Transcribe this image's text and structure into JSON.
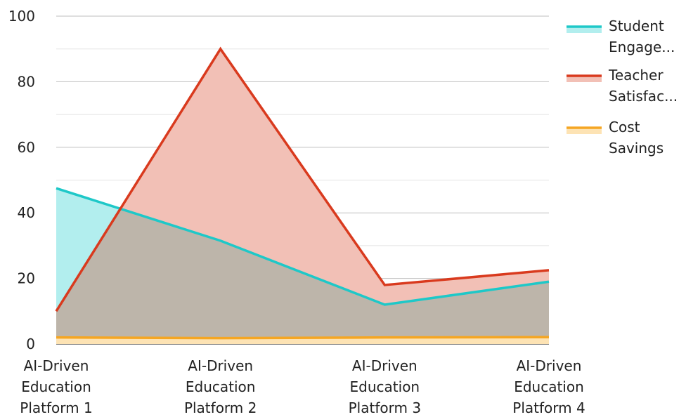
{
  "chart_data": {
    "type": "area",
    "categories": [
      [
        "AI-Driven",
        "Education",
        "Platform 1"
      ],
      [
        "AI-Driven",
        "Education",
        "Platform 2"
      ],
      [
        "AI-Driven",
        "Education",
        "Platform 3"
      ],
      [
        "AI-Driven",
        "Education",
        "Platform 4"
      ]
    ],
    "ylim": [
      0,
      100
    ],
    "yticks": [
      0,
      20,
      40,
      60,
      80,
      100
    ],
    "grid": true,
    "legend_position": "right",
    "series": [
      {
        "name": "Student Engage...",
        "legend_lines": [
          "Student",
          "Engage..."
        ],
        "values": [
          47.5,
          31.5,
          12,
          19
        ],
        "color": "#1ec8c8",
        "fill": "#b2eeee"
      },
      {
        "name": "Teacher Satisfac...",
        "legend_lines": [
          "Teacher",
          "Satisfac..."
        ],
        "values": [
          10,
          90,
          18,
          22.5
        ],
        "color": "#d93a1e",
        "fill": "#f2c0b6"
      },
      {
        "name": "Cost Savings",
        "legend_lines": [
          "Cost",
          "Savings"
        ],
        "values": [
          2,
          1.8,
          2,
          2.1
        ],
        "color": "#f5a623",
        "fill": "#fde3b4"
      }
    ],
    "overlap_fill": "#bdb5aa"
  }
}
